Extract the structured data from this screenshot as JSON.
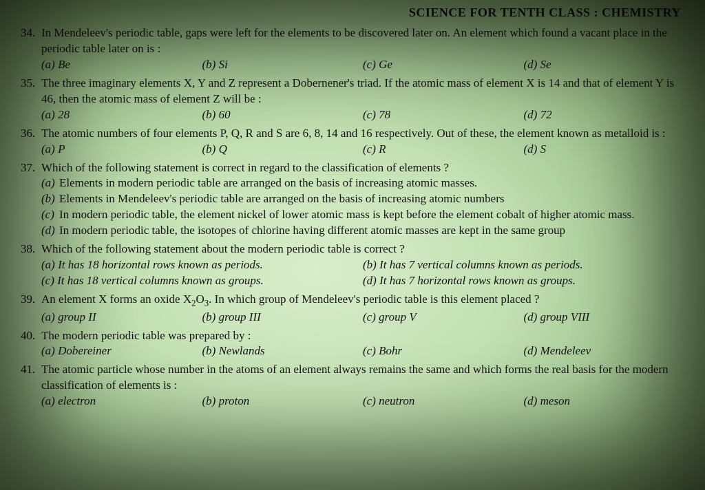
{
  "header": "SCIENCE FOR TENTH CLASS : CHEMISTRY",
  "q34": {
    "num": "34.",
    "text": "In Mendeleev's periodic table, gaps were left for the elements to be discovered later on. An element which found a vacant place in the periodic table later on is :",
    "a": "(a) Be",
    "b": "(b) Si",
    "c": "(c) Ge",
    "d": "(d) Se"
  },
  "q35": {
    "num": "35.",
    "text": "The three imaginary elements X, Y and Z represent a Dobernener's triad. If the atomic mass of element X is 14 and that of element Y is 46, then the atomic mass of element Z will be :",
    "a": "(a) 28",
    "b": "(b) 60",
    "c": "(c) 78",
    "d": "(d) 72"
  },
  "q36": {
    "num": "36.",
    "text": "The atomic numbers of four elements P, Q, R and S are 6, 8, 14 and 16 respectively. Out of these, the element known as metalloid is :",
    "a": "(a) P",
    "b": "(b) Q",
    "c": "(c) R",
    "d": "(d) S"
  },
  "q37": {
    "num": "37.",
    "text": "Which of the following statement is correct in regard to the classification of elements ?",
    "a_l": "(a)",
    "a_t": "Elements in modern periodic table are arranged on the basis of increasing atomic masses.",
    "b_l": "(b)",
    "b_t": "Elements in Mendeleev's periodic table are arranged on the basis of increasing atomic numbers",
    "c_l": "(c)",
    "c_t": "In modern periodic table, the element nickel of lower atomic mass is kept before the element cobalt of higher atomic mass.",
    "d_l": "(d)",
    "d_t": "In modern periodic table, the isotopes of chlorine having different atomic masses are kept in the same group"
  },
  "q38": {
    "num": "38.",
    "text": "Which of the following statement about the modern periodic table is correct ?",
    "a": "(a) It has 18 horizontal rows known as periods.",
    "b": "(b) It has 7 vertical columns known as periods.",
    "c": "(c) It has 18 vertical columns known as groups.",
    "d": "(d) It has 7 horizontal rows known as groups."
  },
  "q39": {
    "num": "39.",
    "text_pre": "An element X forms an oxide X",
    "text_post": ". In which group of Mendeleev's periodic table is this element placed ?",
    "sub1": "2",
    "mid": "O",
    "sub2": "3",
    "a": "(a) group II",
    "b": "(b) group III",
    "c": "(c) group V",
    "d": "(d) group VIII"
  },
  "q40": {
    "num": "40.",
    "text": "The modern periodic table was prepared by :",
    "a": "(a) Dobereiner",
    "b": "(b) Newlands",
    "c": "(c) Bohr",
    "d": "(d) Mendeleev"
  },
  "q41": {
    "num": "41.",
    "text": "The atomic particle whose number in the atoms of an element always remains the same and which forms the real basis for the modern classification of elements is :",
    "a": "(a) electron",
    "b": "(b) proton",
    "c": "(c) neutron",
    "d": "(d) meson"
  }
}
